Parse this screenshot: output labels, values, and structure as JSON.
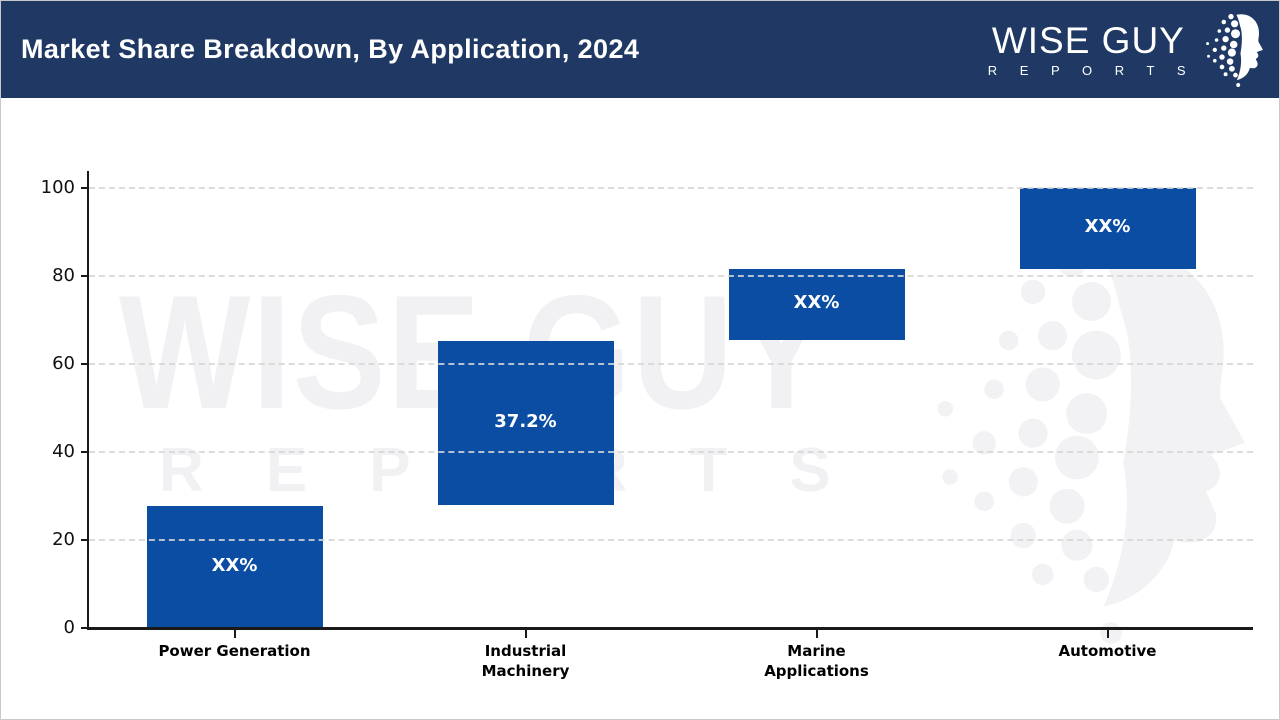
{
  "header": {
    "title": "Market Share Breakdown, By Application, 2024",
    "bg_color": "#1f3864",
    "logo": {
      "line1": "WISE GUY",
      "line2": "R E P O R T S"
    }
  },
  "watermark": {
    "line1": "WISE GUY",
    "line2": "REPORTS"
  },
  "chart_data": {
    "type": "bar",
    "subtype": "floating-waterfall",
    "title": "Market Share Breakdown, By Application, 2024",
    "categories": [
      "Power Generation",
      "Industrial Machinery",
      "Marine Applications",
      "Automotive"
    ],
    "category_lines": [
      [
        "Power Generation"
      ],
      [
        "Industrial",
        "Machinery"
      ],
      [
        "Marine",
        "Applications"
      ],
      [
        "Automotive"
      ]
    ],
    "segments": [
      {
        "category": "Power Generation",
        "start": 0,
        "end": 27.7,
        "label": "XX%"
      },
      {
        "category": "Industrial Machinery",
        "start": 28.0,
        "end": 65.2,
        "label": "37.2%"
      },
      {
        "category": "Marine Applications",
        "start": 65.4,
        "end": 81.7,
        "label": "XX%"
      },
      {
        "category": "Automotive",
        "start": 81.7,
        "end": 100,
        "label": "XX%"
      }
    ],
    "ylim": [
      0,
      100
    ],
    "yticks": [
      0,
      20,
      40,
      60,
      80,
      100
    ],
    "xlabel": "",
    "ylabel": "",
    "grid": "horizontal-dashed",
    "legend": "none",
    "bar_color": "#0b4da2",
    "bar_label_color": "#ffffff"
  }
}
